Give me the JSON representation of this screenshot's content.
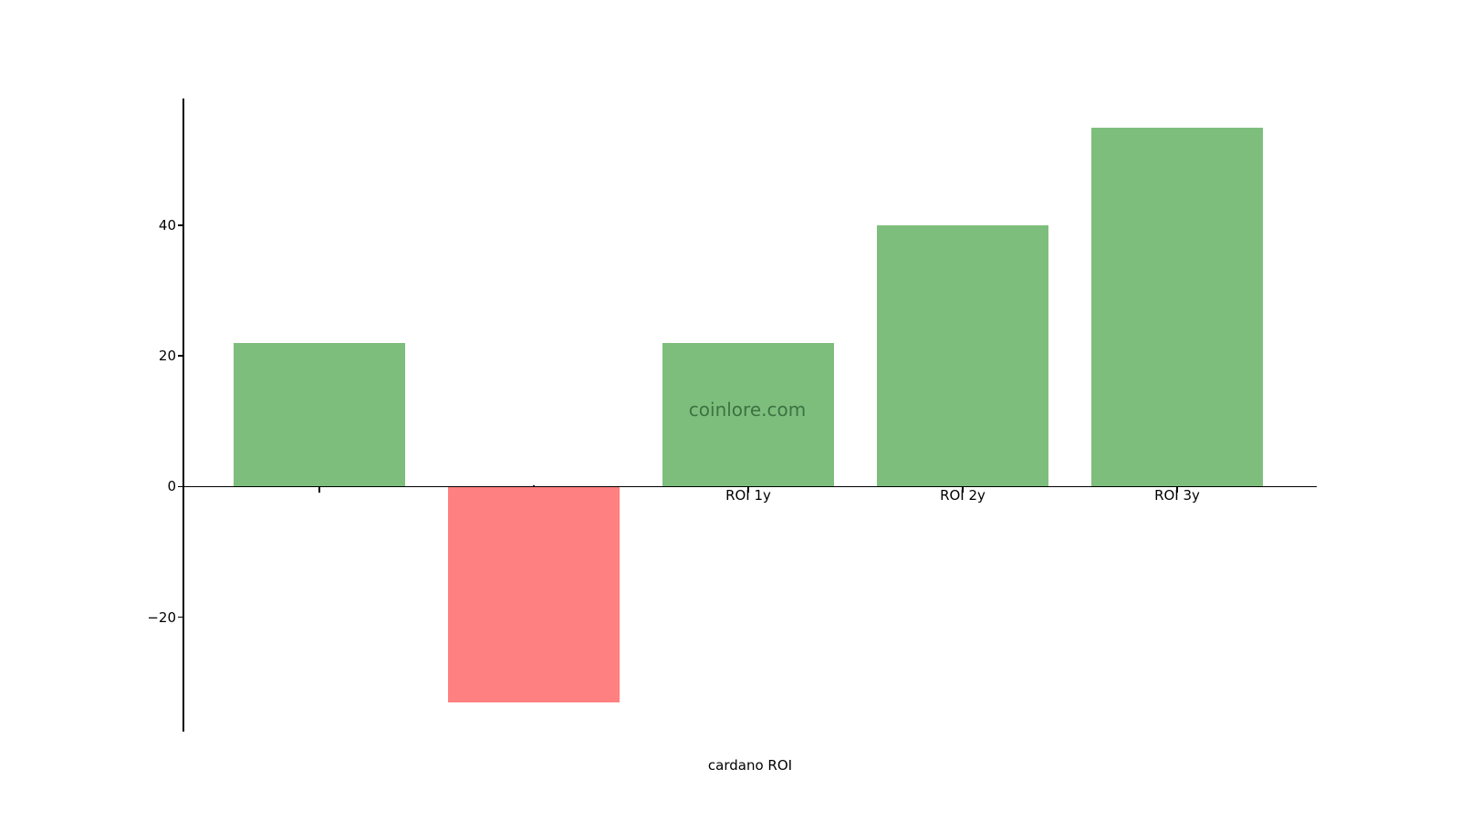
{
  "watermark": {
    "text": "coinlore.com",
    "color": "#3C7341"
  },
  "chart_data": {
    "type": "bar",
    "title": "",
    "xlabel": "cardano ROI",
    "ylabel": "",
    "categories": [
      "",
      "",
      "ROI 1y",
      "ROI 2y",
      "ROI 3y"
    ],
    "values": [
      22,
      -33,
      22,
      40,
      55
    ],
    "yticks": [
      40,
      20,
      0,
      -20
    ],
    "ytick_labels": [
      "40",
      "20",
      "0",
      "−20"
    ],
    "ylim": [
      -37.5,
      59.4
    ],
    "grid": false,
    "legend": false,
    "positive_color": "#7DBE7D",
    "negative_color": "#FF8080",
    "axis_color": "#000000",
    "text_color": "#000000"
  }
}
